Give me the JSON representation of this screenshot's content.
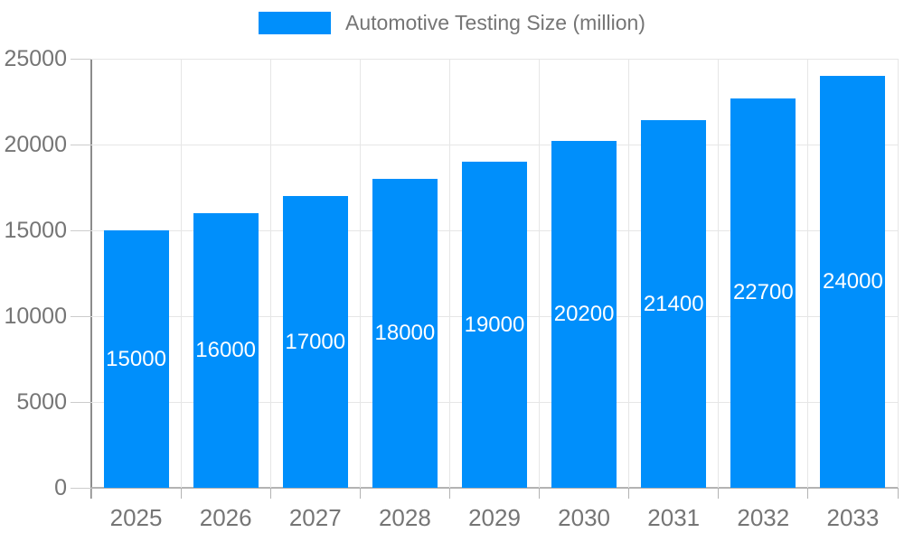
{
  "legend": {
    "label": "Automotive Testing Size (million)",
    "swatch_color": "#008FFB"
  },
  "chart_data": {
    "type": "bar",
    "title": "",
    "xlabel": "",
    "ylabel": "",
    "categories": [
      "2025",
      "2026",
      "2027",
      "2028",
      "2029",
      "2030",
      "2031",
      "2032",
      "2033"
    ],
    "series": [
      {
        "name": "Automotive Testing Size (million)",
        "values": [
          15000,
          16000,
          17000,
          18000,
          19000,
          20200,
          21400,
          22700,
          24000
        ]
      }
    ],
    "value_labels": [
      "15000",
      "16000",
      "17000",
      "18000",
      "19000",
      "20200",
      "21400",
      "22700",
      "24000"
    ],
    "ylim": [
      0,
      25000
    ],
    "yticks": [
      0,
      5000,
      10000,
      15000,
      20000,
      25000
    ],
    "grid": true,
    "legend_position": "top",
    "colors": {
      "bar": "#008FFB",
      "bar_label_text": "#ffffff",
      "axis_text": "#757575",
      "gridline": "#e6e6e6",
      "axis_line": "#8c8c8c",
      "baseline": "#b3b3b3"
    }
  }
}
